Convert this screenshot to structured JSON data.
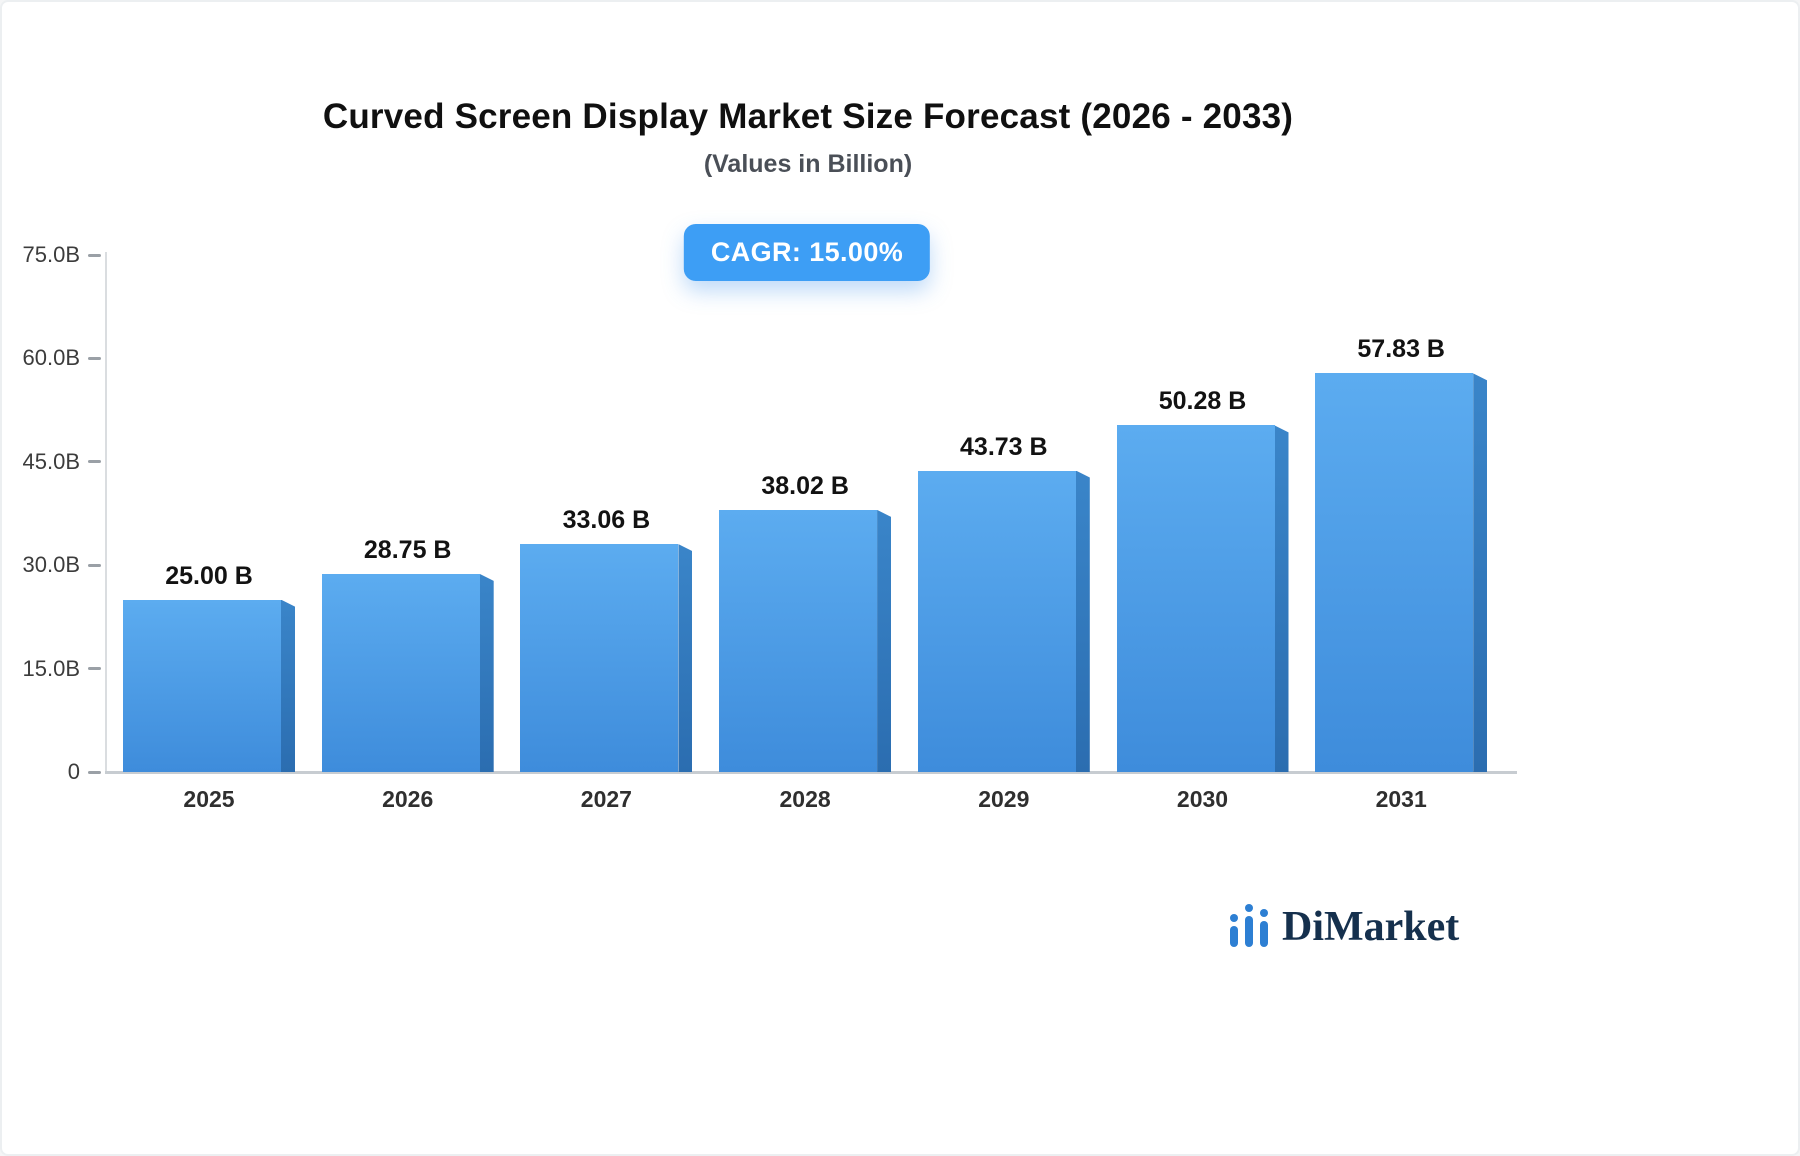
{
  "title": "Curved Screen Display Market Size Forecast (2026 - 2033)",
  "subtitle": "(Values in Billion)",
  "badge": {
    "label": "CAGR: 15.00%",
    "color": "#3d9ef5"
  },
  "brand": {
    "name": "DiMarket",
    "icon": "bar-chart-icon",
    "color": "#2d7fd3"
  },
  "chart_data": {
    "type": "bar",
    "categories": [
      "2025",
      "2026",
      "2027",
      "2028",
      "2029",
      "2030",
      "2031"
    ],
    "values": [
      25.0,
      28.75,
      33.06,
      38.02,
      43.73,
      50.28,
      57.83
    ],
    "value_labels": [
      "25.00 B",
      "28.75 B",
      "33.06 B",
      "38.02 B",
      "43.73 B",
      "50.28 B",
      "57.83 B"
    ],
    "title": "Curved Screen Display Market Size Forecast (2026 - 2033)",
    "xlabel": "",
    "ylabel": "",
    "ylim": [
      0,
      75
    ],
    "yticks": [
      0,
      15,
      30,
      45,
      60,
      75
    ],
    "ytick_labels": [
      "0",
      "15.0B",
      "30.0B",
      "45.0B",
      "60.0B",
      "75.0B"
    ],
    "grid": false,
    "legend": false,
    "bar_color_top": "#5cacf0",
    "bar_color_bottom": "#3e8cdb",
    "bar_side_color": "#2b6db0"
  }
}
